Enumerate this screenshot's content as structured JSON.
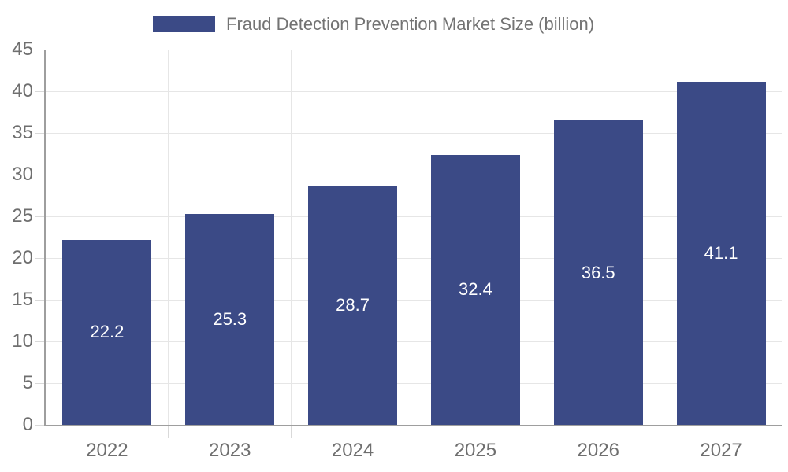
{
  "chart_data": {
    "type": "bar",
    "title": "Fraud Detection Prevention Market Size (billion)",
    "legend": {
      "label": "Fraud Detection Prevention Market Size (billion)",
      "position": "top"
    },
    "categories": [
      "2022",
      "2023",
      "2024",
      "2025",
      "2026",
      "2027"
    ],
    "values": [
      22.2,
      25.3,
      28.7,
      32.4,
      36.5,
      41.1
    ],
    "value_labels": [
      "22.2",
      "25.3",
      "28.7",
      "32.4",
      "36.5",
      "41.1"
    ],
    "yticks": [
      0,
      5,
      10,
      15,
      20,
      25,
      30,
      35,
      40,
      45
    ],
    "ylim": [
      0,
      45
    ],
    "xlabel": "",
    "ylabel": "",
    "grid": true,
    "colors": {
      "bar": "#3b4a86",
      "grid": "#e6e6e6",
      "tick": "#d9d9d9",
      "axis": "#9e9e9e",
      "tick_label": "#6f6f6f",
      "legend_text": "#737373",
      "value_label": "#ffffff",
      "background": "#ffffff"
    }
  }
}
